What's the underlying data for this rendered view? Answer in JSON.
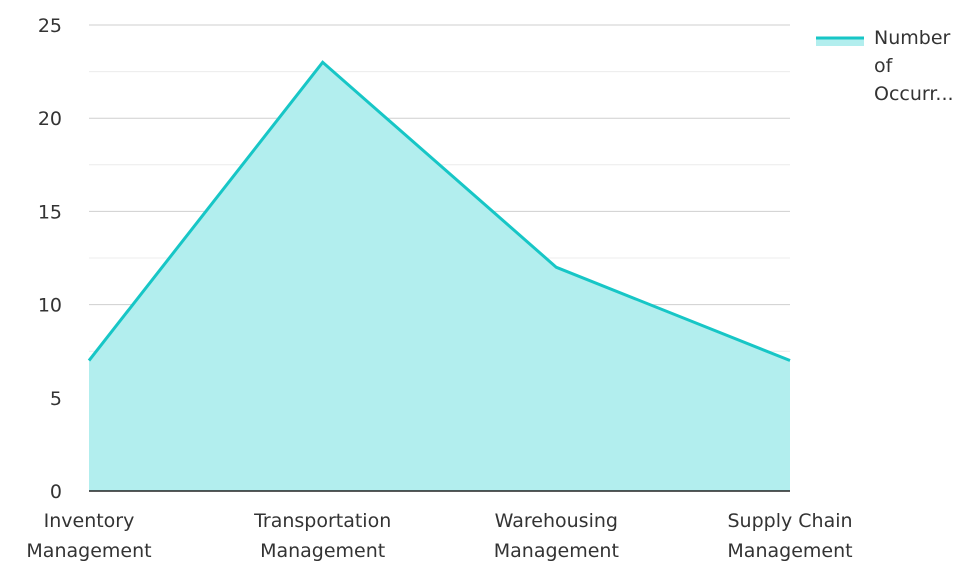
{
  "chart_data": {
    "type": "area",
    "categories": [
      [
        "Inventory",
        "Management"
      ],
      [
        "Transportation",
        "Management"
      ],
      [
        "Warehousing",
        "Management"
      ],
      [
        "Supply Chain",
        "Management"
      ]
    ],
    "series": [
      {
        "name": [
          "Number",
          "of",
          "Occurr..."
        ],
        "values": [
          7,
          23,
          12,
          7
        ]
      }
    ],
    "yticks": [
      "0",
      "5",
      "10",
      "15",
      "20",
      "25"
    ],
    "ylim": [
      0,
      25
    ],
    "grid": true,
    "legend": "top-right"
  },
  "colors": {
    "line": "#17c6c6",
    "fill": "#b2eeee",
    "grid_major": "#cfcfcf",
    "grid_minor": "#ececec",
    "axis": "#222222",
    "text": "#333333"
  }
}
